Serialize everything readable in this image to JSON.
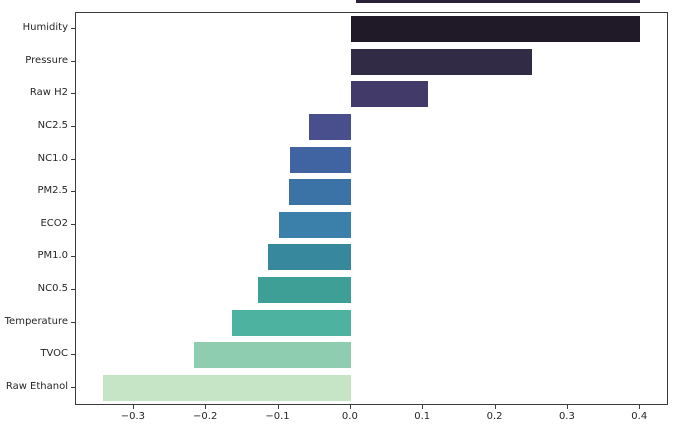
{
  "chart_data": {
    "type": "bar",
    "orientation": "horizontal",
    "title": "",
    "xlabel": "",
    "ylabel": "",
    "grid": false,
    "legend": null,
    "categories": [
      "Humidity",
      "Pressure",
      "Raw H2",
      "NC2.5",
      "NC1.0",
      "PM2.5",
      "ECO2",
      "PM1.0",
      "NC0.5",
      "Temperature",
      "TVOC",
      "Raw Ethanol"
    ],
    "values": [
      0.4,
      0.25,
      0.106,
      -0.058,
      -0.084,
      -0.086,
      -0.099,
      -0.115,
      -0.129,
      -0.165,
      -0.217,
      -0.343
    ],
    "bar_colors": [
      "#201a28",
      "#322b45",
      "#423a68",
      "#494f8c",
      "#4063a1",
      "#3c73a6",
      "#3a80ab",
      "#37879d",
      "#3d9f95",
      "#4eb2a0",
      "#8ecdb0",
      "#c5e5c6"
    ],
    "xlim": [
      -0.38,
      0.437
    ],
    "x_ticks": [
      -0.3,
      -0.2,
      -0.1,
      0.0,
      0.1,
      0.2,
      0.3,
      0.4
    ],
    "x_tick_labels": [
      "−0.3",
      "−0.2",
      "−0.1",
      "0.0",
      "0.1",
      "0.2",
      "0.3",
      "0.4"
    ],
    "bar_rel_height": 0.8,
    "background": "#ffffff",
    "spine_color": "#3b3b3b",
    "tick_label_color": "#262626"
  },
  "decor": {
    "top_strip_color": "#2a2137"
  }
}
